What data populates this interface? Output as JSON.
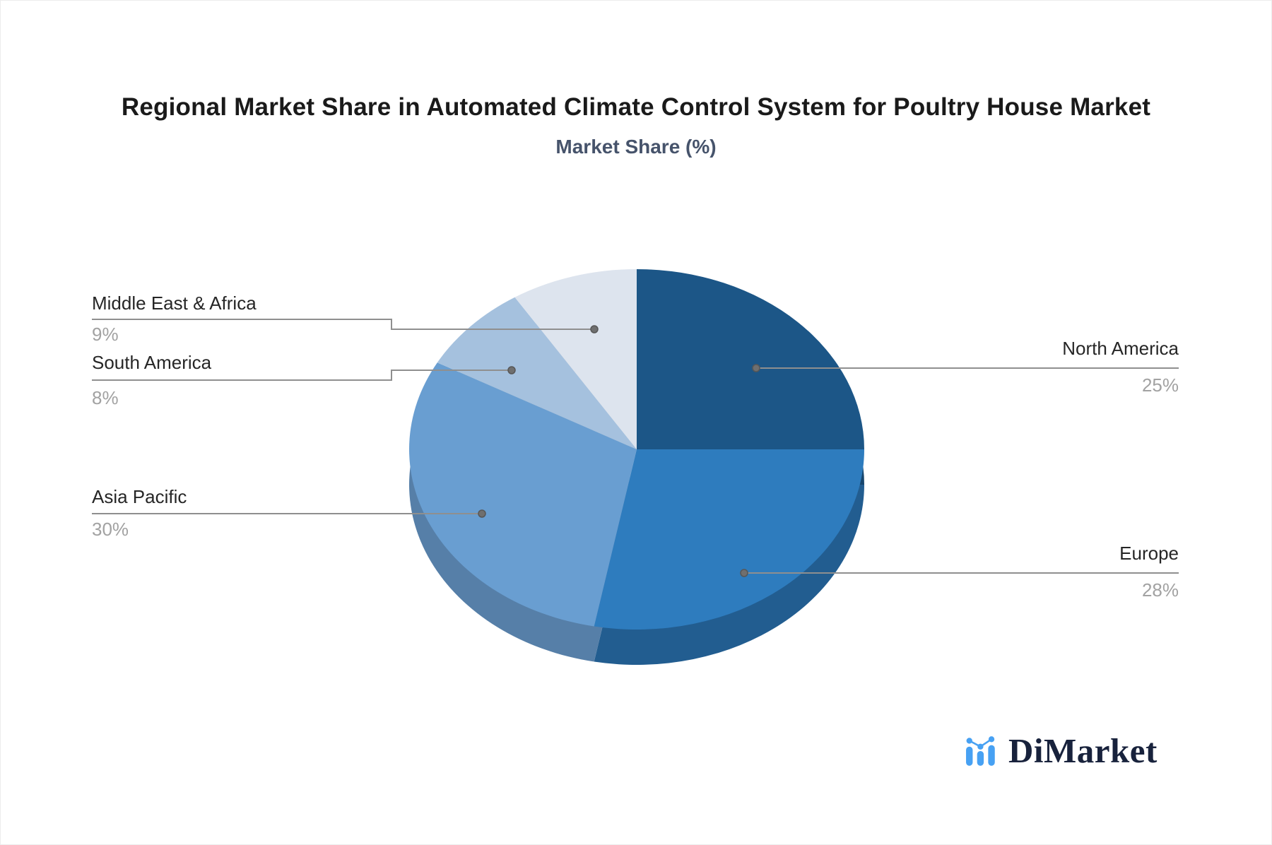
{
  "title": "Regional Market Share in Automated Climate Control System for Poultry House Market",
  "subtitle": "Market Share (%)",
  "chart_data": {
    "type": "pie",
    "style": "3d",
    "title": "Regional Market Share in Automated Climate Control System for Poultry House Market",
    "subtitle": "Market Share (%)",
    "unit": "%",
    "start_angle_deg": 0,
    "direction": "clockwise",
    "legend_position": "callout-labels",
    "label_color": "#262626",
    "value_color": "#a2a2a2",
    "leader_line_color": "#8f8f8f",
    "slices": [
      {
        "label": "North America",
        "value": 25,
        "display": "25%",
        "color": "#1C5687",
        "depth_color": "#17466D",
        "side": "right"
      },
      {
        "label": "Europe",
        "value": 28,
        "display": "28%",
        "color": "#2E7CBE",
        "depth_color": "#225D90",
        "side": "right"
      },
      {
        "label": "Asia Pacific",
        "value": 30,
        "display": "30%",
        "color": "#699ED1",
        "depth_color": "#567FA8",
        "side": "left"
      },
      {
        "label": "South America",
        "value": 8,
        "display": "8%",
        "color": "#A5C1DE",
        "depth_color": "#8CA9C6",
        "side": "left"
      },
      {
        "label": "Middle East & Africa",
        "value": 9,
        "display": "9%",
        "color": "#DDE4EE",
        "depth_color": "#BDC8D6",
        "side": "left"
      }
    ]
  },
  "brand": {
    "name": "DiMarket",
    "icon": "bar-chart-logo-icon",
    "icon_color": "#47a1f3",
    "text_color": "#18223c"
  }
}
